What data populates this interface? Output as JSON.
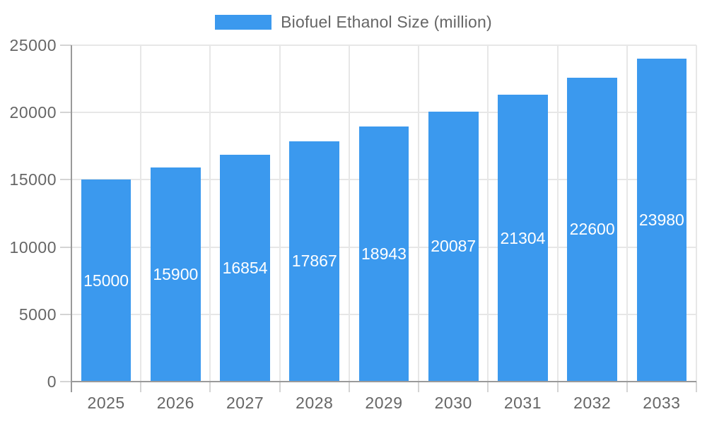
{
  "legend": {
    "label": "Biofuel Ethanol Size (million)"
  },
  "chart_data": {
    "type": "bar",
    "title": "",
    "categories": [
      "2025",
      "2026",
      "2027",
      "2028",
      "2029",
      "2030",
      "2031",
      "2032",
      "2033"
    ],
    "series": [
      {
        "name": "Biofuel Ethanol Size (million)",
        "values": [
          15000,
          15900,
          16854,
          17867,
          18943,
          20087,
          21304,
          22600,
          23980
        ]
      }
    ],
    "xlabel": "",
    "ylabel": "",
    "ylim": [
      0,
      25000
    ],
    "y_ticks": [
      0,
      5000,
      10000,
      15000,
      20000,
      25000
    ],
    "grid": true,
    "legend_position": "top",
    "value_labels_inside_bars": true
  },
  "colors": {
    "bar": "#3b99ee",
    "axis_line": "#9a9a9a",
    "gridline": "#e7e7e7",
    "tick_mark": "#d4d4d4",
    "axis_text": "#666666",
    "bar_label_text": "#ffffff",
    "background": "#ffffff"
  }
}
